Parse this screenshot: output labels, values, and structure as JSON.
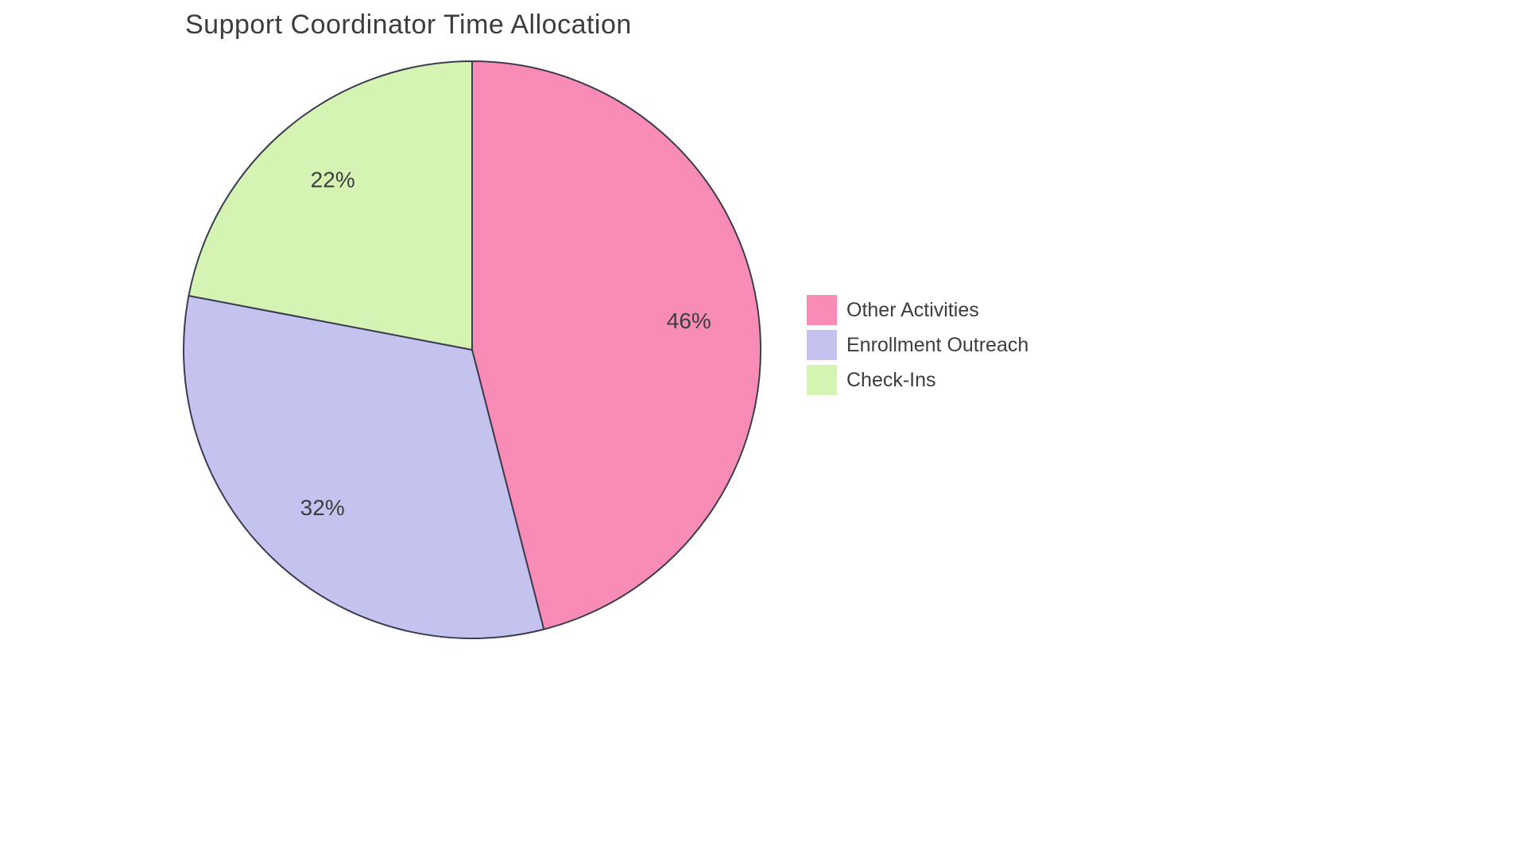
{
  "chart_data": {
    "type": "pie",
    "title": "Support Coordinator Time Allocation",
    "labels": [
      "Other Activities",
      "Enrollment Outreach",
      "Check-Ins"
    ],
    "values": [
      46,
      32,
      22
    ],
    "slice_labels": [
      "46%",
      "32%",
      "22%"
    ],
    "colors": [
      "#F98CB6",
      "#C4C3F0",
      "#D5F4B4"
    ],
    "stroke_color": "#3C3C50",
    "label_color": "#3d3d3d",
    "start_angle_deg": 0,
    "direction": "clockwise",
    "legend_position": "right",
    "legend_labels": [
      "Other Activities",
      "Enrollment Outreach",
      "Check-Ins"
    ]
  }
}
